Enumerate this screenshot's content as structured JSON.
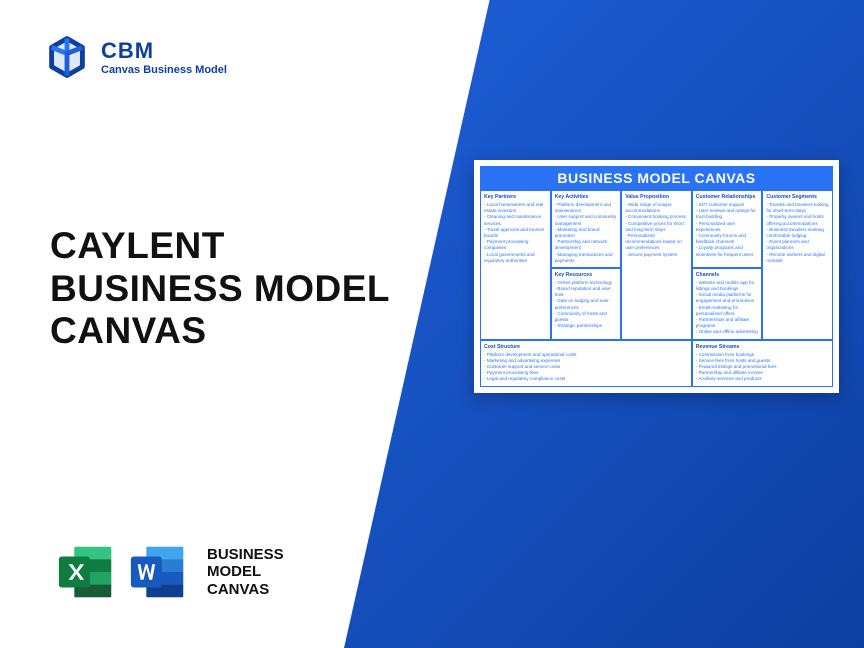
{
  "logo": {
    "title": "CBM",
    "subtitle": "Canvas Business Model"
  },
  "main_title": {
    "line1": "CAYLENT",
    "line2": "BUSINESS MODEL",
    "line3": "CANVAS"
  },
  "bottom": {
    "line1": "BUSINESS",
    "line2": "MODEL",
    "line3": "CANVAS"
  },
  "canvas": {
    "header": "BUSINESS MODEL CANVAS",
    "kp": {
      "title": "Key Partners",
      "items": [
        "Local homeowners and real estate investors",
        "Cleaning and maintenance services",
        "Travel agencies and tourism boards",
        "Payment processing companies",
        "Local governments and regulatory authorities"
      ]
    },
    "ka": {
      "title": "Key Activities",
      "items": [
        "Platform development and maintenance",
        "User support and community management",
        "Marketing and brand promotion",
        "Partnership and network development",
        "Managing transactions and payments"
      ]
    },
    "kr": {
      "title": "Key Resources",
      "items": [
        "Online platform technology",
        "Brand reputation and user trust",
        "Data on lodging and user preferences",
        "Community of hosts and guests",
        "Strategic partnerships"
      ]
    },
    "vp": {
      "title": "Value Proposition",
      "items": [
        "Wide range of unique accommodations",
        "Convenient booking process",
        "Competitive prices for short and long-term stays",
        "Personalized recommendations based on user preferences",
        "Secure payment system"
      ]
    },
    "cr": {
      "title": "Customer Relationships",
      "items": [
        "24/7 customer support",
        "User reviews and ratings for trust-building",
        "Personalized user experiences",
        "Community forums and feedback channels",
        "Loyalty programs and incentives for frequent users"
      ]
    },
    "ch": {
      "title": "Channels",
      "items": [
        "Website and mobile app for listings and bookings",
        "Social media platforms for engagement and promotions",
        "Email marketing for personalized offers",
        "Partnerships and affiliate programs",
        "Online and offline advertising"
      ]
    },
    "cs": {
      "title": "Customer Segments",
      "items": [
        "Tourists and travelers looking for short-term stays",
        "Property owners and hosts offering accommodations",
        "Business travelers seeking comfortable lodging",
        "Event planners and organizations",
        "Remote workers and digital nomads"
      ]
    },
    "cost": {
      "title": "Cost Structure",
      "items": [
        "Platform development and operational costs",
        "Marketing and advertising expenses",
        "Customer support and service costs",
        "Payment processing fees",
        "Legal and regulatory compliance costs"
      ]
    },
    "rev": {
      "title": "Revenue Streams",
      "items": [
        "Commission from bookings",
        "Service fees from hosts and guests",
        "Featured listings and promotional fees",
        "Partnership and affiliate income",
        "Ancillary services and products"
      ]
    }
  },
  "colors": {
    "brand": "#0d3fa0",
    "accent": "#2b73f5",
    "excel": "#107c41",
    "word": "#185abd"
  }
}
